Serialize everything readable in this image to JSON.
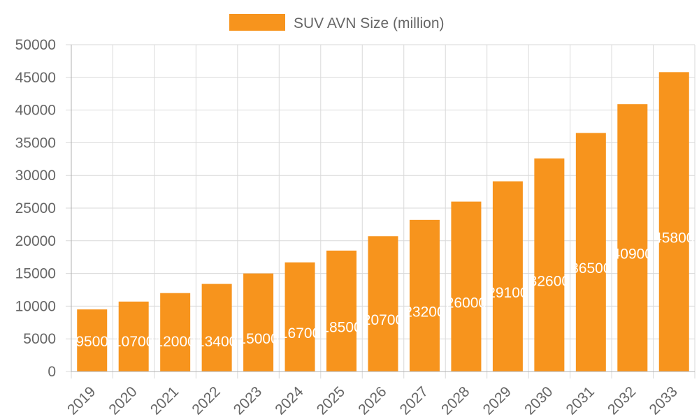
{
  "chart_data": {
    "type": "bar",
    "categories": [
      "2019",
      "2020",
      "2021",
      "2022",
      "2023",
      "2024",
      "2025",
      "2026",
      "2027",
      "2028",
      "2029",
      "2030",
      "2031",
      "2032",
      "2033"
    ],
    "series": [
      {
        "name": "SUV AVN Size (million)",
        "color": "#f7941d",
        "values": [
          9500,
          10700,
          12000,
          13400,
          15000,
          16700,
          18500,
          20700,
          23200,
          26000,
          29100,
          32600,
          36500,
          40900,
          45800
        ],
        "value_labels": [
          "9500",
          "10700",
          "12000",
          "13400",
          "15000",
          "16700",
          "18500",
          "20700",
          "23200",
          "26000",
          "29100",
          "32600",
          "36500",
          "40900",
          "45800"
        ]
      }
    ],
    "ylim": [
      0,
      50000
    ],
    "yticks": [
      "0",
      "5000",
      "10000",
      "15000",
      "20000",
      "25000",
      "30000",
      "35000",
      "40000",
      "45000",
      "50000"
    ],
    "grid": true,
    "legend_position": "top-center"
  }
}
